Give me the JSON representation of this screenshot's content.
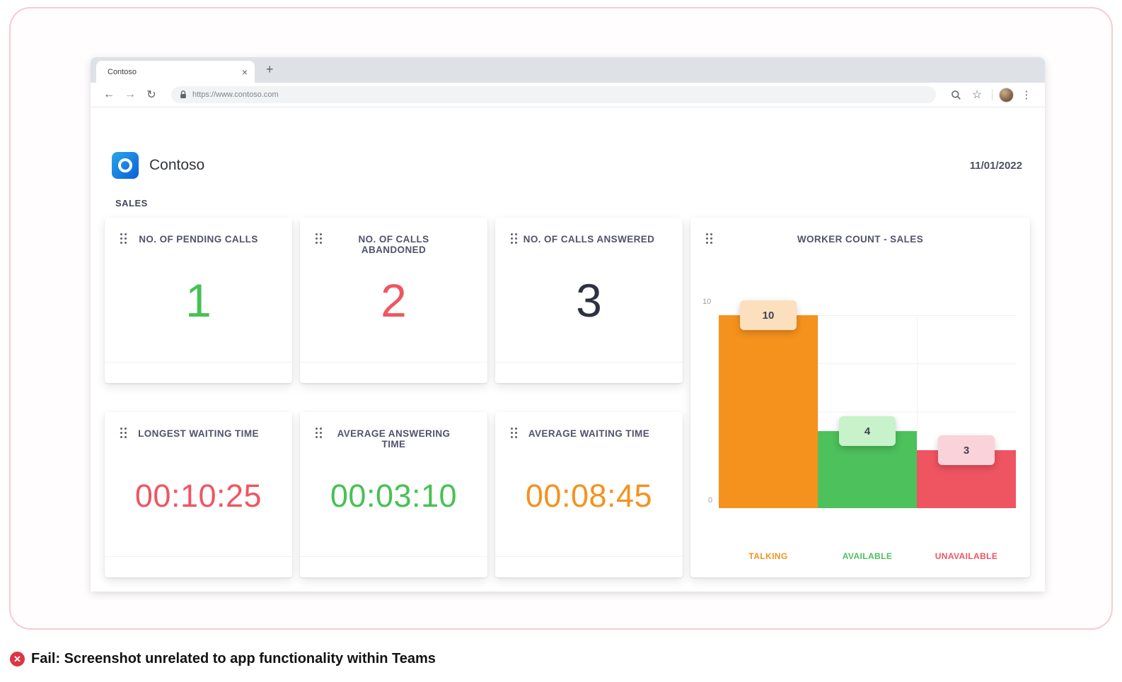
{
  "browser": {
    "tab_title": "Contoso",
    "url": "https://www.contoso.com",
    "icons": {
      "close_tab": "×",
      "new_tab": "+",
      "back": "←",
      "forward": "→",
      "reload": "↻",
      "star": "☆",
      "menu": "⋮"
    }
  },
  "page": {
    "brand": "Contoso",
    "date": "11/01/2022",
    "section_label": "SALES"
  },
  "stat_cards": [
    {
      "title": "NO. OF PENDING CALLS",
      "value": "1",
      "color": "#47c152"
    },
    {
      "title": "NO. OF CALLS ABANDONED",
      "value": "2",
      "color": "#ef5661"
    },
    {
      "title": "NO. OF CALLS ANSWERED",
      "value": "3",
      "color": "#2d3142"
    },
    {
      "title": "LONGEST WAITING TIME",
      "value": "00:10:25",
      "color": "#ef5661"
    },
    {
      "title": "AVERAGE ANSWERING TIME",
      "value": "00:03:10",
      "color": "#47c152"
    },
    {
      "title": "AVERAGE WAITING TIME",
      "value": "00:08:45",
      "color": "#f5921e"
    }
  ],
  "chart_data": {
    "type": "bar",
    "title": "WORKER COUNT - SALES",
    "categories": [
      "TALKING",
      "AVAILABLE",
      "UNAVAILABLE"
    ],
    "values": [
      10,
      4,
      3
    ],
    "ylim": [
      0,
      10
    ],
    "y_ticks": [
      "10",
      "0"
    ],
    "bar_colors": [
      "#f5921e",
      "#4cc15c",
      "#ef5461"
    ],
    "value_label_bg": [
      "#fcdfbc",
      "#c8f2ca",
      "#fad2d9"
    ],
    "legend_colors": [
      "#f5921e",
      "#4cc15c",
      "#ef5461"
    ],
    "legend_position": "bottom",
    "grid": true
  },
  "caption": {
    "icon": "✕",
    "text": "Fail: Screenshot unrelated to app functionality within Teams"
  }
}
